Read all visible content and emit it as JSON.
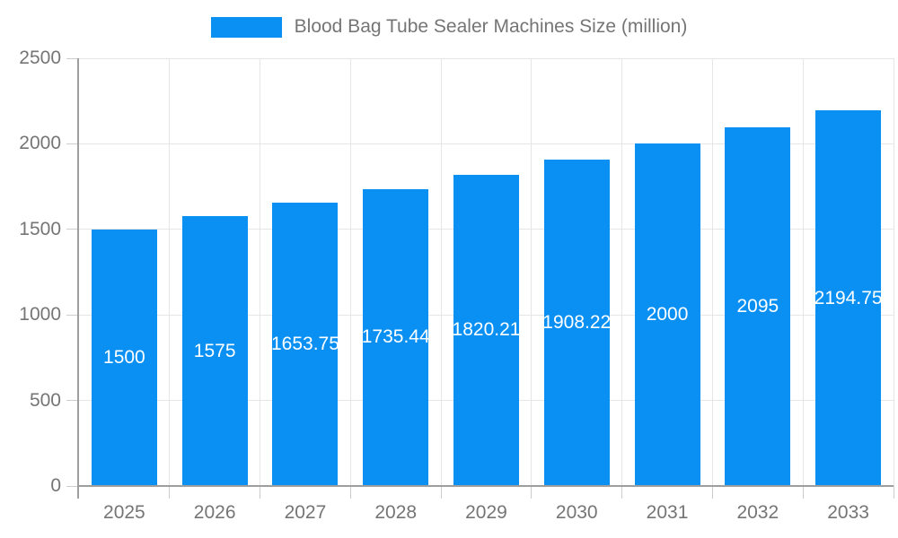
{
  "legend": {
    "label": "Blood Bag Tube Sealer Machines Size (million)"
  },
  "chart_data": {
    "type": "bar",
    "title": "Blood Bag Tube Sealer Machines Size (million)",
    "categories": [
      "2025",
      "2026",
      "2027",
      "2028",
      "2029",
      "2030",
      "2031",
      "2032",
      "2033"
    ],
    "series": [
      {
        "name": "Blood Bag Tube Sealer Machines Size (million)",
        "values": [
          1500,
          1575,
          1653.75,
          1735.44,
          1820.21,
          1908.22,
          2000,
          2095,
          2194.75
        ]
      }
    ],
    "bar_labels": [
      "1500",
      "1575",
      "1653.75",
      "1735.44",
      "1820.21",
      "1908.22",
      "2000",
      "2095",
      "2194.75"
    ],
    "xlabel": "",
    "ylabel": "",
    "ylim": [
      0,
      2500
    ],
    "yticks": [
      0,
      500,
      1000,
      1500,
      2000,
      2500
    ],
    "grid": true,
    "legend_position": "top",
    "colors": {
      "bar": "#0a90f3",
      "axis": "#9e9e9e",
      "grid": "#e6e6e6",
      "tick": "#cccccc",
      "text": "#757575",
      "bar_label": "#ffffff",
      "background": "#ffffff"
    }
  }
}
